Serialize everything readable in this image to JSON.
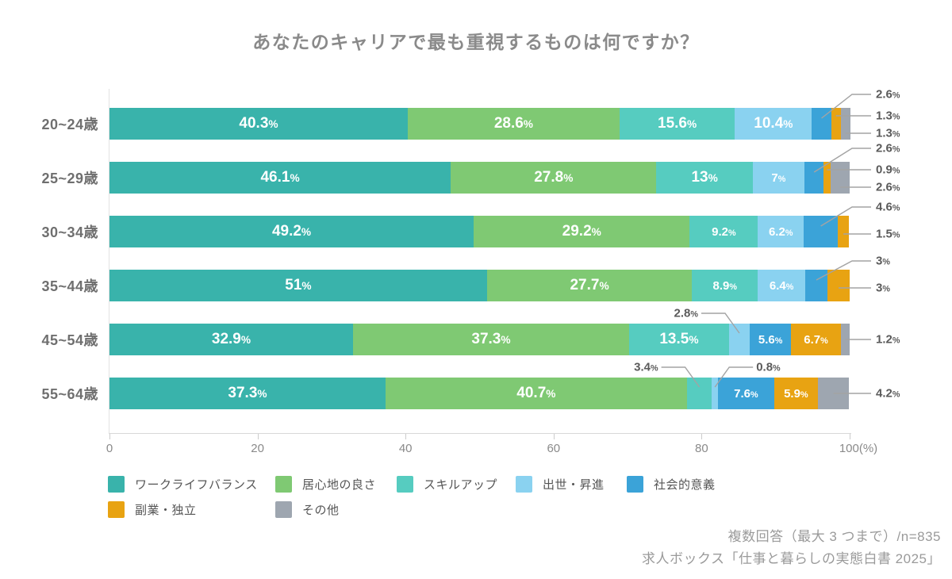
{
  "title": "あなたのキャリアで最も重視するものは何ですか？",
  "footer": {
    "line1": "複数回答（最大 3 つまで）/n=835",
    "line2": "求人ボックス「仕事と暮らしの実態白書 2025」"
  },
  "chart_data": {
    "type": "bar",
    "orientation": "horizontal-stacked",
    "unit": "%",
    "title": "あなたのキャリアで最も重視するものは何ですか？",
    "n": 835,
    "xlim": [
      0,
      100
    ],
    "grid": false,
    "legend_position": "bottom-left",
    "x_ticks": [
      {
        "value": 0,
        "label": "0"
      },
      {
        "value": 20,
        "label": "20"
      },
      {
        "value": 40,
        "label": "40"
      },
      {
        "value": 60,
        "label": "60"
      },
      {
        "value": 80,
        "label": "80"
      },
      {
        "value": 100,
        "label": "100(%)"
      }
    ],
    "series": [
      {
        "name": "ワークライフバランス",
        "color": "#39b3ab"
      },
      {
        "name": "居心地の良さ",
        "color": "#7fc973"
      },
      {
        "name": "スキルアップ",
        "color": "#56ccc0"
      },
      {
        "name": "出世・昇進",
        "color": "#8ad2f0"
      },
      {
        "name": "社会的意義",
        "color": "#3ba3d8"
      },
      {
        "name": "副業・独立",
        "color": "#e8a312"
      },
      {
        "name": "その他",
        "color": "#9ea6b0"
      }
    ],
    "rows": [
      {
        "category": "20~24歳",
        "segments": [
          {
            "series": 0,
            "value": 40.3,
            "text": "40.3%",
            "label": "inside"
          },
          {
            "series": 1,
            "value": 28.6,
            "text": "28.6%",
            "label": "inside"
          },
          {
            "series": 2,
            "value": 15.6,
            "text": "15.6%",
            "label": "inside"
          },
          {
            "series": 3,
            "value": 10.4,
            "text": "10.4%",
            "label": "inside"
          },
          {
            "series": 4,
            "value": 2.6,
            "text": "2.6%",
            "label": "callout-right"
          },
          {
            "series": 5,
            "value": 1.3,
            "text": "1.3%",
            "label": "callout-right"
          },
          {
            "series": 6,
            "value": 1.3,
            "text": "1.3%",
            "label": "callout-right"
          }
        ]
      },
      {
        "category": "25~29歳",
        "segments": [
          {
            "series": 0,
            "value": 46.1,
            "text": "46.1%",
            "label": "inside"
          },
          {
            "series": 1,
            "value": 27.8,
            "text": "27.8%",
            "label": "inside"
          },
          {
            "series": 2,
            "value": 13,
            "text": "13%",
            "label": "inside"
          },
          {
            "series": 3,
            "value": 7,
            "text": "7%",
            "label": "inside"
          },
          {
            "series": 4,
            "value": 2.6,
            "text": "2.6%",
            "label": "callout-right"
          },
          {
            "series": 5,
            "value": 0.9,
            "text": "0.9%",
            "label": "callout-right"
          },
          {
            "series": 6,
            "value": 2.6,
            "text": "2.6%",
            "label": "callout-right"
          }
        ]
      },
      {
        "category": "30~34歳",
        "segments": [
          {
            "series": 0,
            "value": 49.2,
            "text": "49.2%",
            "label": "inside"
          },
          {
            "series": 1,
            "value": 29.2,
            "text": "29.2%",
            "label": "inside"
          },
          {
            "series": 2,
            "value": 9.2,
            "text": "9.2%",
            "label": "inside"
          },
          {
            "series": 3,
            "value": 6.2,
            "text": "6.2%",
            "label": "inside"
          },
          {
            "series": 4,
            "value": 4.6,
            "text": "4.6%",
            "label": "callout-right"
          },
          {
            "series": 5,
            "value": 1.5,
            "text": "1.5%",
            "label": "callout-right"
          }
        ]
      },
      {
        "category": "35~44歳",
        "segments": [
          {
            "series": 0,
            "value": 51,
            "text": "51%",
            "label": "inside"
          },
          {
            "series": 1,
            "value": 27.7,
            "text": "27.7%",
            "label": "inside"
          },
          {
            "series": 2,
            "value": 8.9,
            "text": "8.9%",
            "label": "inside"
          },
          {
            "series": 3,
            "value": 6.4,
            "text": "6.4%",
            "label": "inside"
          },
          {
            "series": 4,
            "value": 3,
            "text": "3%",
            "label": "callout-right"
          },
          {
            "series": 5,
            "value": 3,
            "text": "3%",
            "label": "callout-right"
          }
        ]
      },
      {
        "category": "45~54歳",
        "segments": [
          {
            "series": 0,
            "value": 32.9,
            "text": "32.9%",
            "label": "inside"
          },
          {
            "series": 1,
            "value": 37.3,
            "text": "37.3%",
            "label": "inside"
          },
          {
            "series": 2,
            "value": 13.5,
            "text": "13.5%",
            "label": "inside"
          },
          {
            "series": 3,
            "value": 2.8,
            "text": "2.8%",
            "label": "callout-above-left"
          },
          {
            "series": 4,
            "value": 5.6,
            "text": "5.6%",
            "label": "inside"
          },
          {
            "series": 5,
            "value": 6.7,
            "text": "6.7%",
            "label": "inside"
          },
          {
            "series": 6,
            "value": 1.2,
            "text": "1.2%",
            "label": "callout-right"
          }
        ]
      },
      {
        "category": "55~64歳",
        "segments": [
          {
            "series": 0,
            "value": 37.3,
            "text": "37.3%",
            "label": "inside"
          },
          {
            "series": 1,
            "value": 40.7,
            "text": "40.7%",
            "label": "inside"
          },
          {
            "series": 2,
            "value": 3.4,
            "text": "3.4%",
            "label": "callout-above-left"
          },
          {
            "series": 3,
            "value": 0.8,
            "text": "0.8%",
            "label": "callout-above-right"
          },
          {
            "series": 4,
            "value": 7.6,
            "text": "7.6%",
            "label": "inside"
          },
          {
            "series": 5,
            "value": 5.9,
            "text": "5.9%",
            "label": "inside"
          },
          {
            "series": 6,
            "value": 4.2,
            "text": "4.2%",
            "label": "callout-right"
          }
        ]
      }
    ]
  }
}
